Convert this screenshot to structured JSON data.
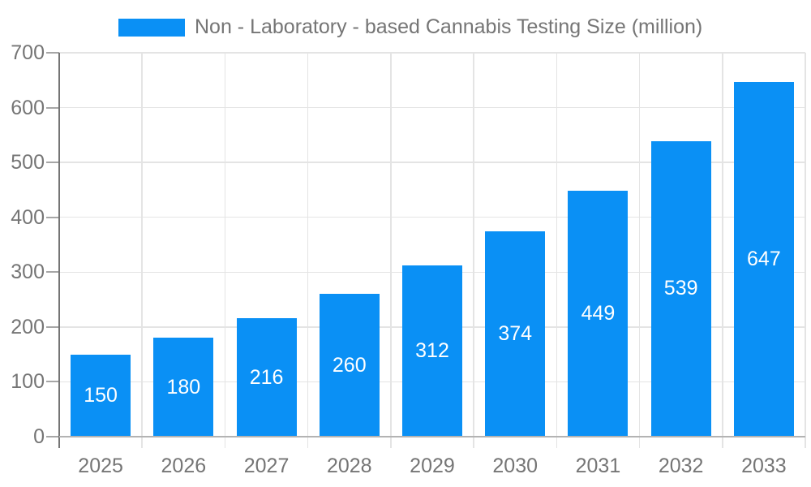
{
  "chart_data": {
    "type": "bar",
    "title": "Non - Laboratory - based Cannabis Testing Size (million)",
    "categories": [
      "2025",
      "2026",
      "2027",
      "2028",
      "2029",
      "2030",
      "2031",
      "2032",
      "2033"
    ],
    "values": [
      150,
      180,
      216,
      260,
      312,
      374,
      449,
      539,
      647
    ],
    "xlabel": "",
    "ylabel": "",
    "ylim": [
      0,
      700
    ],
    "yticks": [
      0,
      100,
      200,
      300,
      400,
      500,
      600,
      700
    ],
    "grid": true,
    "legend_position": "top",
    "value_label_position": "inside-center"
  },
  "colors": {
    "bar": "#0a90f5",
    "axis_text": "#757575",
    "value_label_text": "#ffffff",
    "grid_line": "#e4e4e4",
    "baseline": "#b3b3b3",
    "axis_line": "#757575",
    "tick": "#a6a6a6",
    "background": "#ffffff"
  }
}
